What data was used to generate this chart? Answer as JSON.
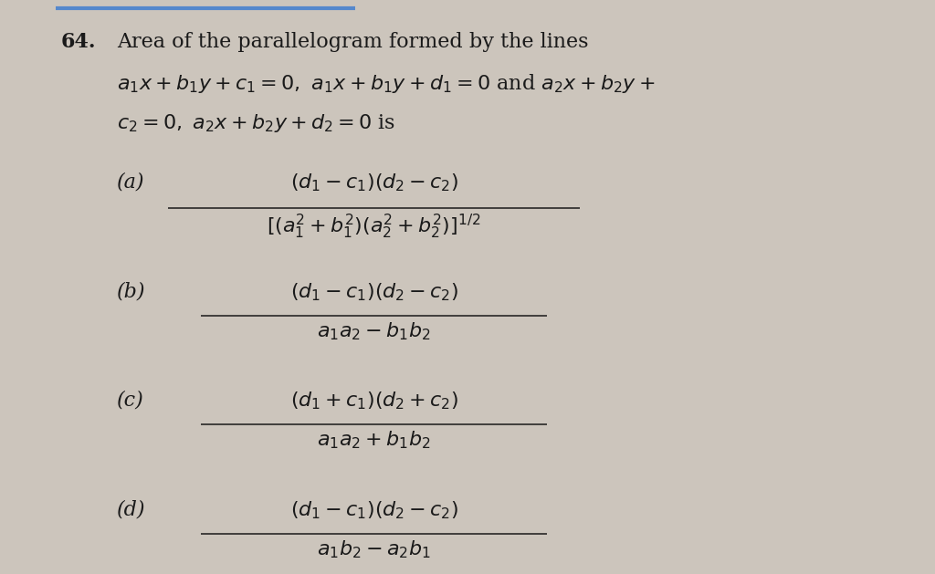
{
  "background_color": "#ccc5bc",
  "text_color": "#1a1a1a",
  "blue_line_color": "#5588cc",
  "fontsize": 16,
  "q_num": "64.",
  "q_line1": "Area of the parallelogram formed by the lines",
  "q_line2": "$a_1x+b_1y+c_1=0,\\ a_1x+b_1y+d_1=0$ and $a_2x+b_2y+$",
  "q_line3": "$c_2=0,\\ a_2x+b_2y+d_2=0$ is",
  "opt_a_label": "(a)",
  "opt_a_num": "$(d_1-c_1)(d_2-c_2)$",
  "opt_a_den": "$[(a_1^2+b_1^2)(a_2^2+b_2^2)]^{1/2}$",
  "opt_b_label": "(b)",
  "opt_b_num": "$(d_1-c_1)(d_2-c_2)$",
  "opt_b_den": "$a_1a_2-b_1b_2$",
  "opt_c_label": "(c)",
  "opt_c_num": "$(d_1+c_1)(d_2+c_2)$",
  "opt_c_den": "$a_1a_2+b_1b_2$",
  "opt_d_label": "(d)",
  "opt_d_num": "$(d_1-c_1)(d_2-c_2)$",
  "opt_d_den": "$a_1b_2-a_2b_1$"
}
